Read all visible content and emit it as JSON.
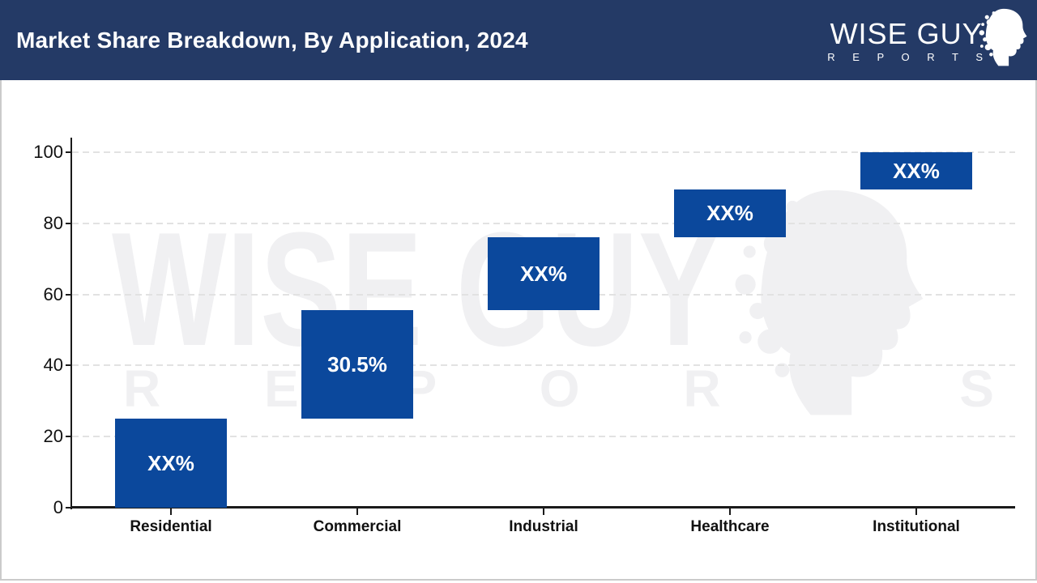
{
  "header": {
    "title": "Market Share Breakdown, By Application, 2024",
    "logo": {
      "line1": "WISE GUY",
      "line2": "R E P O R T S"
    }
  },
  "watermark": {
    "line1": "WISE GUY",
    "line2": "R E P O R T S"
  },
  "chart_data": {
    "type": "bar",
    "subtype": "waterfall-floating-bars",
    "title": "Market Share Breakdown, By Application, 2024",
    "xlabel": "",
    "ylabel": "",
    "categories": [
      "Residential",
      "Commercial",
      "Industrial",
      "Healthcare",
      "Institutional"
    ],
    "segments": [
      {
        "category": "Residential",
        "label": "XX%",
        "start": 0,
        "end": 25
      },
      {
        "category": "Commercial",
        "label": "30.5%",
        "start": 25,
        "end": 55.5
      },
      {
        "category": "Industrial",
        "label": "XX%",
        "start": 55.5,
        "end": 76
      },
      {
        "category": "Healthcare",
        "label": "XX%",
        "start": 76,
        "end": 89.5
      },
      {
        "category": "Institutional",
        "label": "XX%",
        "start": 89.5,
        "end": 100
      }
    ],
    "yticks": [
      0,
      20,
      40,
      60,
      80,
      100
    ],
    "ylim": [
      0,
      104
    ],
    "grid": "horizontal-dashed",
    "legend": "none",
    "bar_color": "#0B489C",
    "bar_label_color": "#FFFFFF"
  },
  "colors": {
    "header_bg": "#243A66",
    "bar": "#0B489C",
    "axis": "#1A1A1A",
    "gridline": "#E2E2E2",
    "watermark": "#F0F0F2",
    "frame_border": "#CBCBCB",
    "title_text": "#FFFFFF",
    "tick_text": "#111111"
  }
}
